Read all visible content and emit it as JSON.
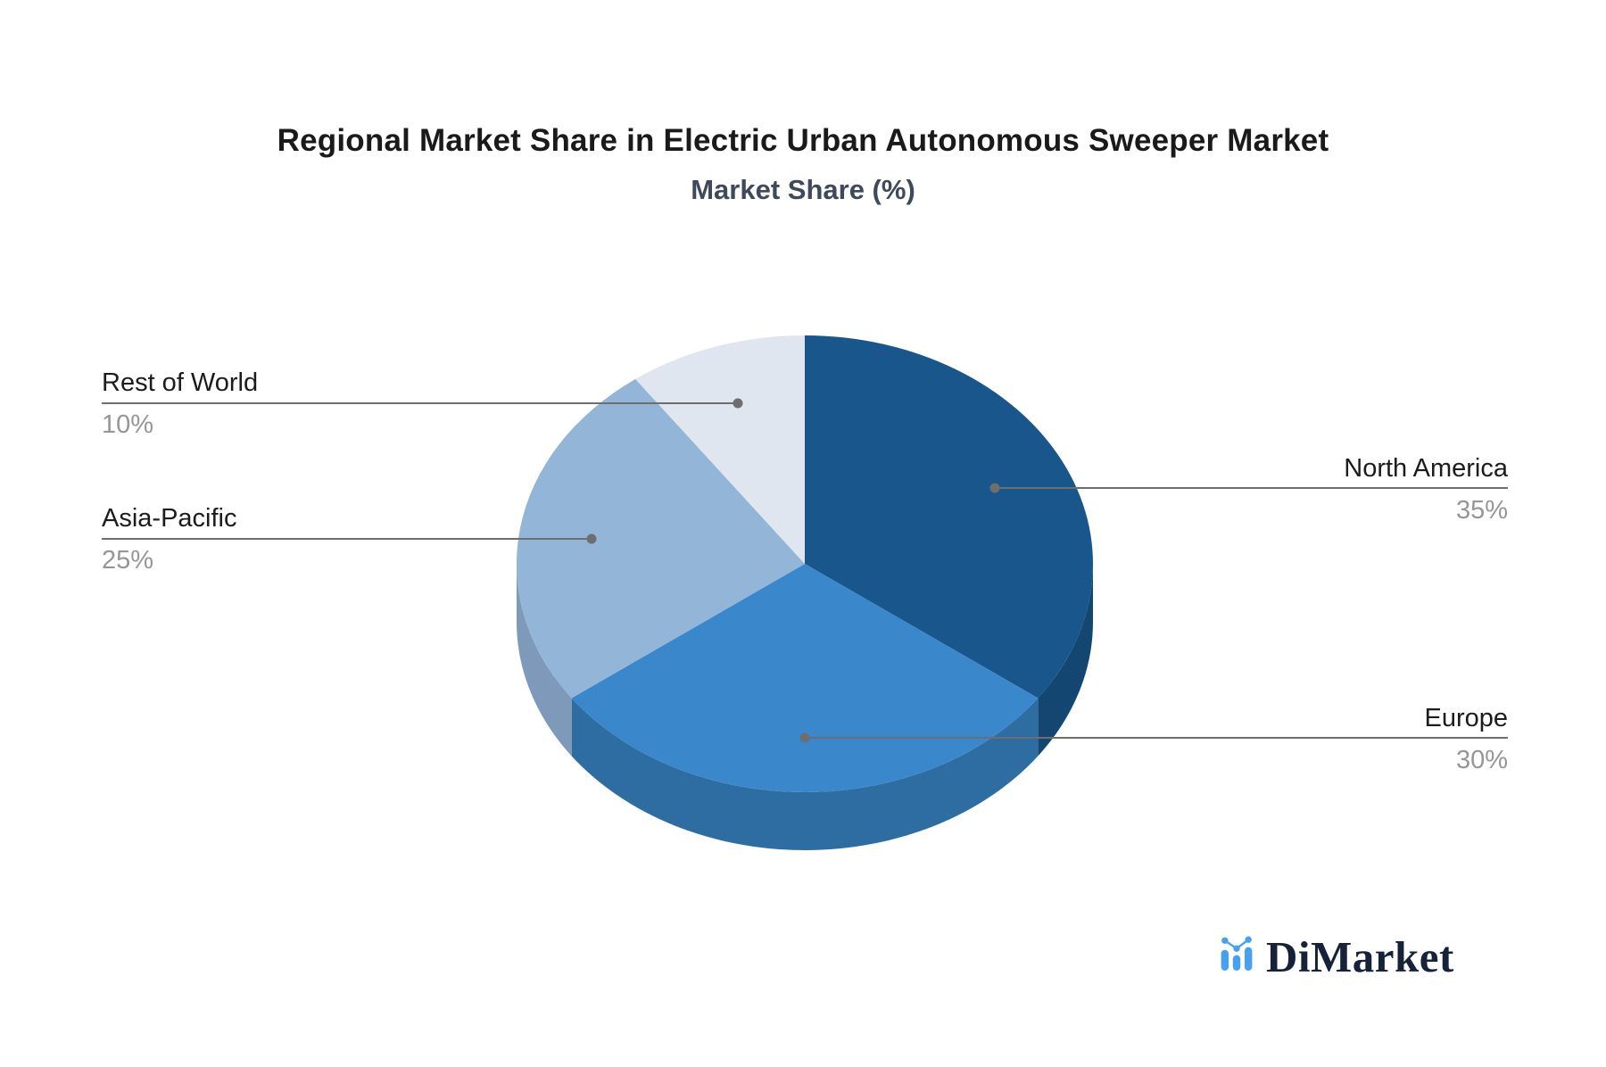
{
  "chart_data": {
    "type": "pie",
    "style": "3d",
    "title": "Regional Market Share in Electric Urban Autonomous Sweeper Market",
    "subtitle": "Market Share (%)",
    "unit": "%",
    "start_angle_deg": 0,
    "direction": "clockwise",
    "legend_position": "callout-labels",
    "grid": false,
    "slices": [
      {
        "label": "North America",
        "value": 35,
        "display_value": "35%",
        "color": "#19568C",
        "side_color": "#134670"
      },
      {
        "label": "Europe",
        "value": 30,
        "display_value": "30%",
        "color": "#3A88CB",
        "side_color": "#2E6DA1"
      },
      {
        "label": "Asia-Pacific",
        "value": 25,
        "display_value": "25%",
        "color": "#92B5D8",
        "side_color": "#7E99BA"
      },
      {
        "label": "Rest of World",
        "value": 10,
        "display_value": "10%",
        "color": "#DFE6F0",
        "side_color": "#C4CEDC"
      }
    ],
    "label_text_color": "#1C1C1C",
    "value_text_color": "#969696",
    "leader_line_color": "#6E6E6E"
  },
  "brand": {
    "name": "DiMarket",
    "icon": "bar-line-chart-icon",
    "icon_color": "#46A1F3",
    "text_color": "#16213A"
  }
}
